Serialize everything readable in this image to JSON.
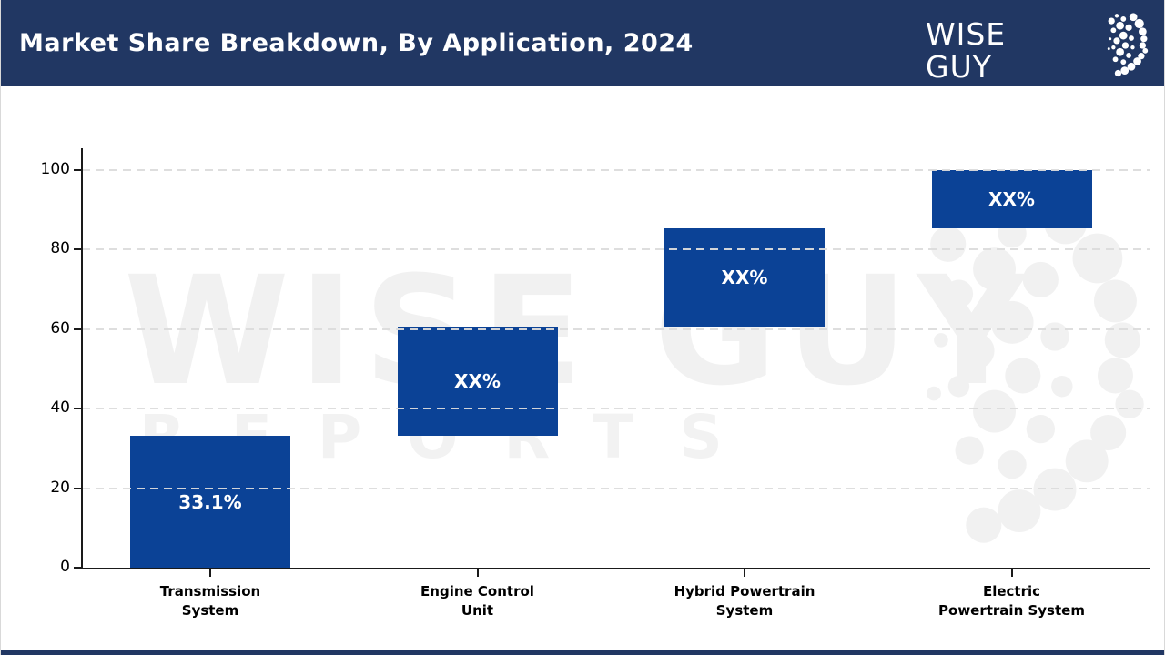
{
  "header": {
    "title": "Market Share Breakdown, By Application, 2024",
    "brand": {
      "name_top": "WISE GUY",
      "name_bottom": "REPORTS"
    }
  },
  "watermark": {
    "line1": "WISE GUY",
    "line2": "REPORTS"
  },
  "chart_data": {
    "type": "bar",
    "subtype": "waterfall",
    "title": "Market Share Breakdown, By Application, 2024",
    "xlabel": "",
    "ylabel": "",
    "ylim": [
      0,
      100
    ],
    "yticks": [
      0,
      20,
      40,
      60,
      80,
      100
    ],
    "grid": "horizontal-dashed",
    "legend": "none",
    "categories": [
      {
        "lines": [
          "Transmission",
          "System"
        ]
      },
      {
        "lines": [
          "Engine Control",
          "Unit"
        ]
      },
      {
        "lines": [
          "Hybrid Powertrain",
          "System"
        ]
      },
      {
        "lines": [
          "Electric",
          "Powertrain System"
        ]
      }
    ],
    "series": [
      {
        "name": "Market Share",
        "segments": [
          {
            "from": 0,
            "to": 33.1,
            "label": "33.1%"
          },
          {
            "from": 33.1,
            "to": 60.6,
            "label": "XX%"
          },
          {
            "from": 60.6,
            "to": 85.4,
            "label": "XX%"
          },
          {
            "from": 85.4,
            "to": 100,
            "label": "XX%"
          }
        ]
      }
    ]
  },
  "colors": {
    "header_bg": "#213763",
    "footer_bg": "#213763",
    "bar": "#0b4296",
    "bar_label": "#ffffff",
    "grid": "#dcdcdc",
    "axis": "#1a1a1a",
    "watermark": "#f1f1f1",
    "border": "#d9d9d9"
  }
}
